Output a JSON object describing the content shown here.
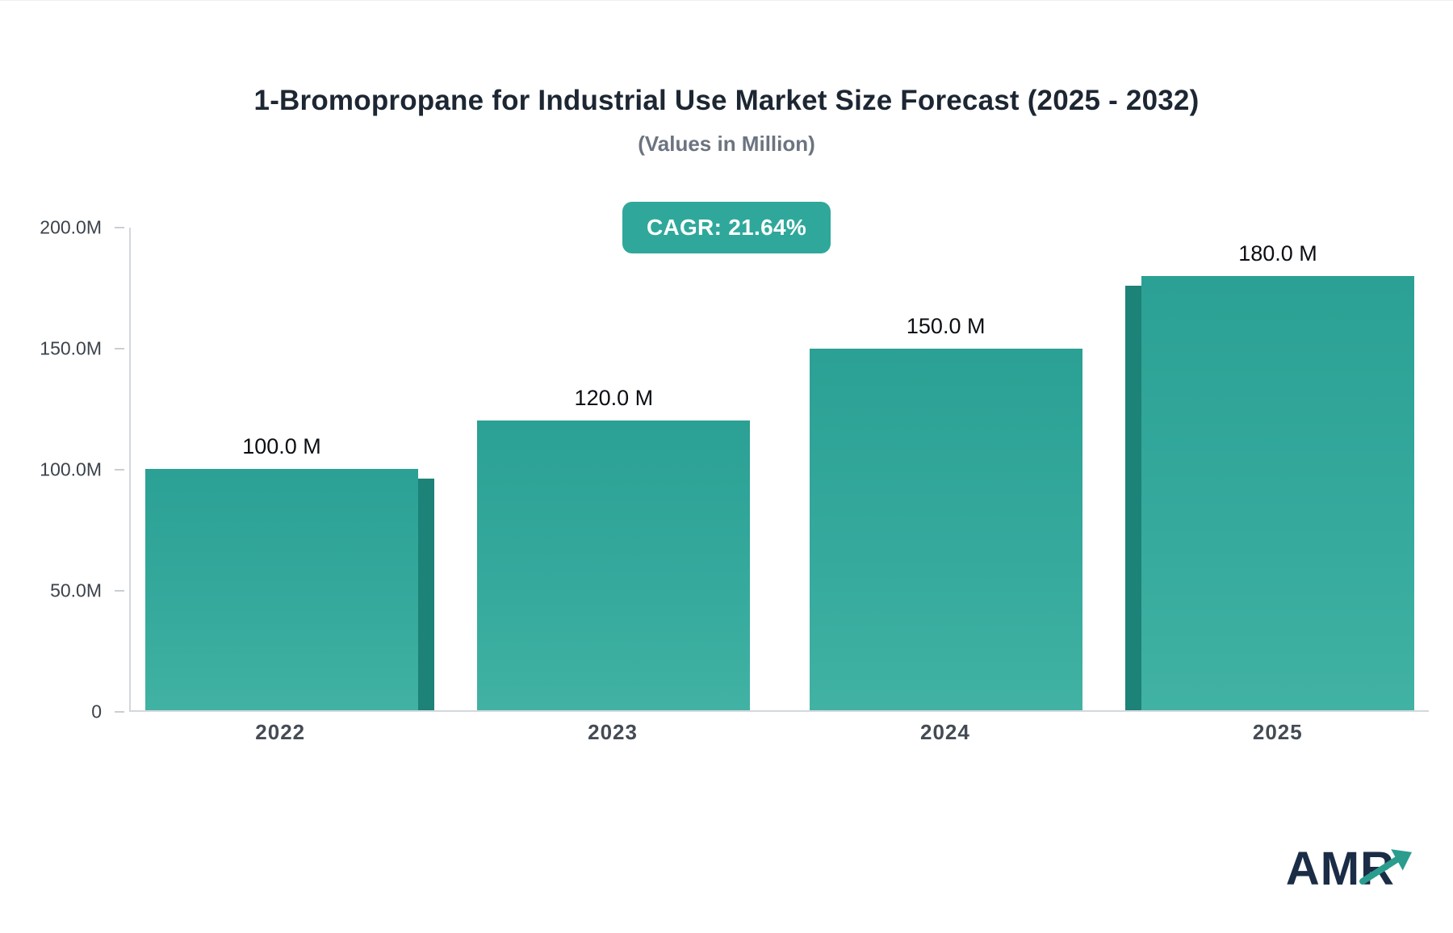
{
  "header": {
    "title": "1-Bromopropane for Industrial Use Market Size Forecast (2025 - 2032)",
    "subtitle": "(Values in Million)",
    "cagr_badge": "CAGR: 21.64%"
  },
  "chart_data": {
    "type": "bar",
    "title": "1-Bromopropane for Industrial Use Market Size Forecast (2025 - 2032)",
    "subtitle": "(Values in Million)",
    "categories": [
      "2022",
      "2023",
      "2024",
      "2025"
    ],
    "values": [
      100.0,
      120.0,
      150.0,
      180.0
    ],
    "bar_labels": [
      "100.0 M",
      "120.0 M",
      "150.0 M",
      "180.0 M"
    ],
    "xlabel": "",
    "ylabel": "",
    "ylim": [
      0,
      200
    ],
    "yticks": [
      0,
      50,
      100,
      150,
      200
    ],
    "ytick_labels": [
      "0",
      "50.0M",
      "100.0M",
      "150.0M",
      "200.0M"
    ],
    "grid": false,
    "legend": "none",
    "annotations": [
      "CAGR: 21.64%"
    ],
    "bar_color_top": "#2ba094",
    "bar_color_bottom": "#41b2a3",
    "bar_side_color": "#1d8277"
  },
  "logo": {
    "text": "AMR"
  },
  "colors": {
    "accent": "#2a9d8f",
    "badge_bg": "#2fa89b",
    "title_text": "#1d2733",
    "subtitle_text": "#6b7480",
    "axis_line": "#d3d8dc",
    "axis_text": "#3c434b"
  }
}
